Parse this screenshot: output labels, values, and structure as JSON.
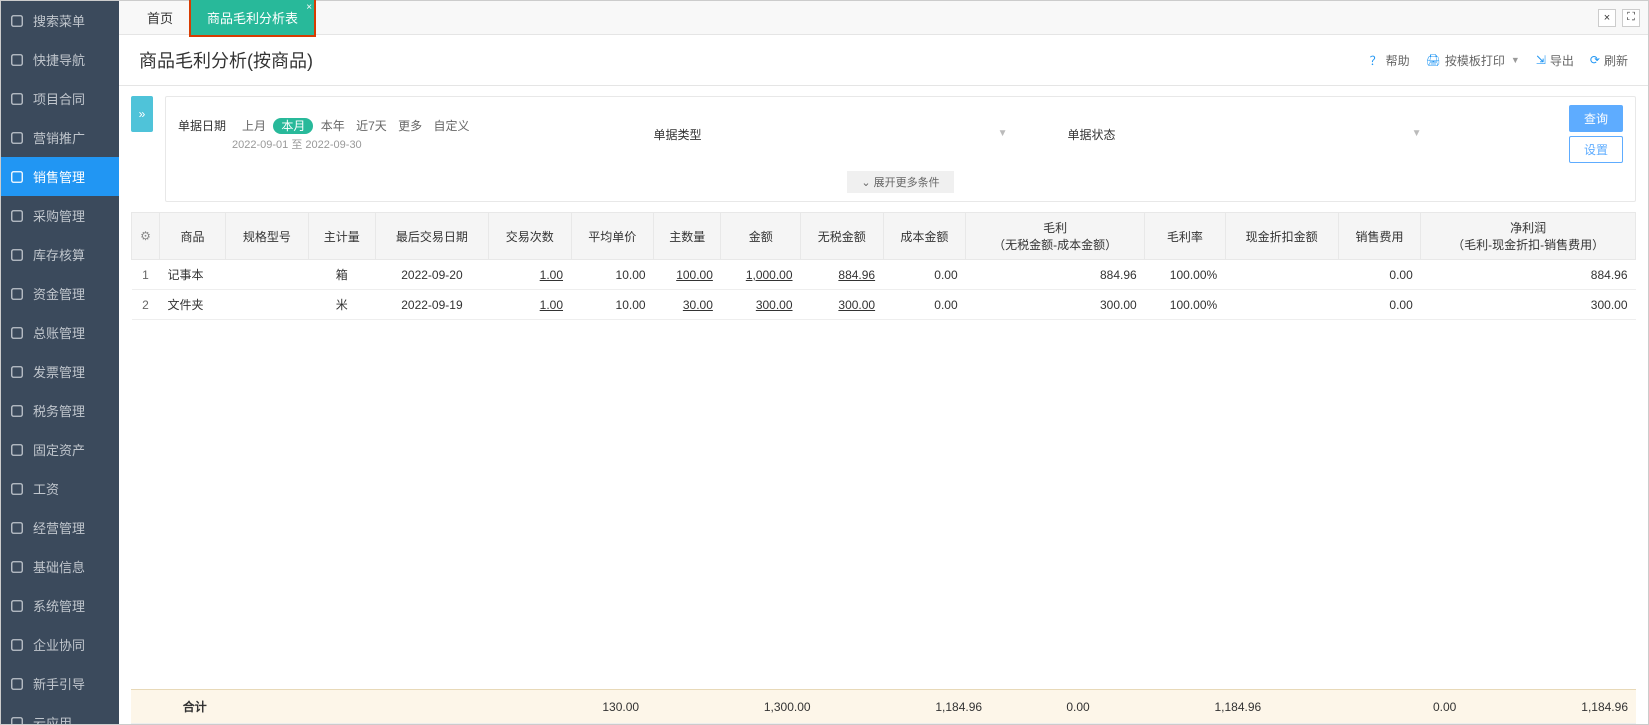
{
  "sidebar": {
    "items": [
      {
        "label": "搜索菜单",
        "icon": "search"
      },
      {
        "label": "快捷导航",
        "icon": "home"
      },
      {
        "label": "项目合同",
        "icon": "folder"
      },
      {
        "label": "营销推广",
        "icon": "megaphone"
      },
      {
        "label": "销售管理",
        "icon": "cart",
        "active": true
      },
      {
        "label": "采购管理",
        "icon": "box"
      },
      {
        "label": "库存核算",
        "icon": "warehouse"
      },
      {
        "label": "资金管理",
        "icon": "money"
      },
      {
        "label": "总账管理",
        "icon": "ledger"
      },
      {
        "label": "发票管理",
        "icon": "receipt"
      },
      {
        "label": "税务管理",
        "icon": "tax"
      },
      {
        "label": "固定资产",
        "icon": "asset"
      },
      {
        "label": "工资",
        "icon": "salary"
      },
      {
        "label": "经营管理",
        "icon": "manage"
      },
      {
        "label": "基础信息",
        "icon": "info"
      },
      {
        "label": "系统管理",
        "icon": "gear"
      },
      {
        "label": "企业协同",
        "icon": "team"
      },
      {
        "label": "新手引导",
        "icon": "guide"
      },
      {
        "label": "云应用",
        "icon": "cloud"
      }
    ]
  },
  "tabs": {
    "items": [
      {
        "label": "首页"
      },
      {
        "label": "商品毛利分析表",
        "active": true,
        "closable": true
      }
    ],
    "close_icon": "×",
    "fullscreen_icon": "⛶"
  },
  "page": {
    "title": "商品毛利分析(按商品)",
    "actions": {
      "help": "帮助",
      "print": "按模板打印",
      "export": "导出",
      "refresh": "刷新"
    }
  },
  "filters": {
    "date_label": "单据日期",
    "date_options": [
      "上月",
      "本月",
      "本年",
      "近7天",
      "更多",
      "自定义"
    ],
    "date_active": "本月",
    "date_from": "2022-09-01",
    "date_to": "2022-09-30",
    "date_sep": "至",
    "type_label": "单据类型",
    "status_label": "单据状态",
    "query_btn": "查询",
    "settings_btn": "设置",
    "expand_more": "展开更多条件"
  },
  "table": {
    "columns": [
      {
        "key": "gear",
        "label": "⚙",
        "cls": "gear"
      },
      {
        "key": "product",
        "label": "商品",
        "align": "txt"
      },
      {
        "key": "spec",
        "label": "规格型号",
        "align": "ctr"
      },
      {
        "key": "unit",
        "label": "主计量",
        "align": "ctr"
      },
      {
        "key": "last_date",
        "label": "最后交易日期",
        "align": "ctr"
      },
      {
        "key": "trade_count",
        "label": "交易次数"
      },
      {
        "key": "avg_price",
        "label": "平均单价"
      },
      {
        "key": "main_qty",
        "label": "主数量"
      },
      {
        "key": "amount",
        "label": "金额"
      },
      {
        "key": "notax_amount",
        "label": "无税金额"
      },
      {
        "key": "cost_amount",
        "label": "成本金额"
      },
      {
        "key": "gross",
        "label": "毛利\n（无税金额-成本金额）"
      },
      {
        "key": "gross_rate",
        "label": "毛利率"
      },
      {
        "key": "cash_discount",
        "label": "现金折扣金额"
      },
      {
        "key": "sales_fee",
        "label": "销售费用"
      },
      {
        "key": "net_profit",
        "label": "净利润\n（毛利-现金折扣-销售费用）"
      }
    ],
    "rows": [
      {
        "idx": "1",
        "product": "记事本",
        "spec": "",
        "unit": "箱",
        "last_date": "2022-09-20",
        "trade_count": "1.00",
        "avg_price": "10.00",
        "main_qty": "100.00",
        "amount": "1,000.00",
        "notax_amount": "884.96",
        "cost_amount": "0.00",
        "gross": "884.96",
        "gross_rate": "100.00%",
        "cash_discount": "",
        "sales_fee": "0.00",
        "net_profit": "884.96"
      },
      {
        "idx": "2",
        "product": "文件夹",
        "spec": "",
        "unit": "米",
        "last_date": "2022-09-19",
        "trade_count": "1.00",
        "avg_price": "10.00",
        "main_qty": "30.00",
        "amount": "300.00",
        "notax_amount": "300.00",
        "cost_amount": "0.00",
        "gross": "300.00",
        "gross_rate": "100.00%",
        "cash_discount": "",
        "sales_fee": "0.00",
        "net_profit": "300.00"
      }
    ],
    "totals": {
      "label": "合计",
      "main_qty": "130.00",
      "amount": "1,300.00",
      "notax_amount": "1,184.96",
      "cost_amount": "0.00",
      "gross": "1,184.96",
      "sales_fee": "0.00",
      "net_profit": "1,184.96"
    }
  }
}
